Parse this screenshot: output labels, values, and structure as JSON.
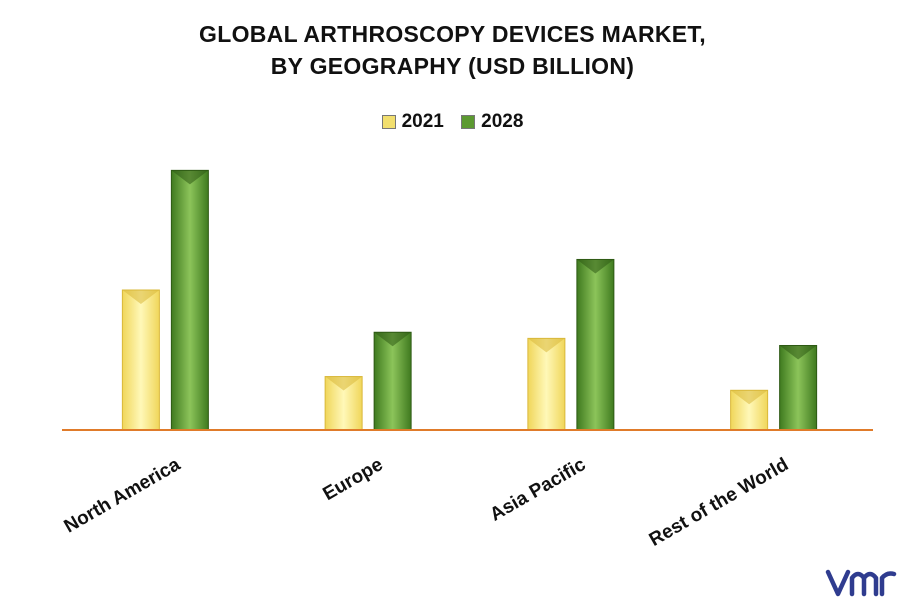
{
  "chart_data": {
    "type": "bar",
    "title_line1": "GLOBAL ARTHROSCOPY DEVICES MARKET,",
    "title_line2": "BY GEOGRAPHY (USD BILLION)",
    "categories": [
      "North America",
      "Europe",
      "Asia Pacific",
      "Rest of the World"
    ],
    "series": [
      {
        "name": "2021",
        "values": [
          2.75,
          1.05,
          1.8,
          0.78
        ],
        "color": "#f2df6e"
      },
      {
        "name": "2028",
        "values": [
          5.1,
          1.92,
          3.35,
          1.66
        ],
        "color": "#5c9a31"
      }
    ],
    "xlabel": "",
    "ylabel": "",
    "ylim": [
      0,
      5.5
    ],
    "grid": false,
    "legend_position": "top-center",
    "axis_color": "#e07b2a"
  },
  "brand": {
    "logo_icon": "vmr-logo",
    "logo_color": "#2f3c8f",
    "logo_text": "vmr"
  }
}
